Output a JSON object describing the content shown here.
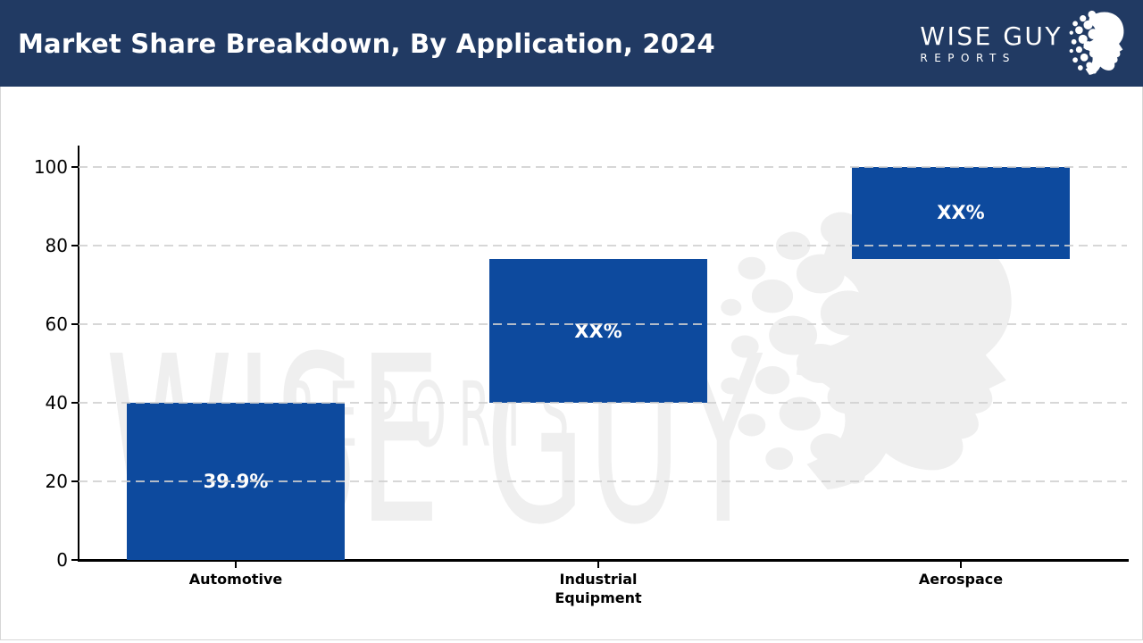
{
  "header": {
    "title": "Market Share Breakdown, By Application, 2024",
    "logo_primary": "WISE GUY",
    "logo_secondary": "REPORTS"
  },
  "watermark": {
    "primary": "WISE GUY",
    "secondary": "REPORTS"
  },
  "colors": {
    "header_bg": "#213a63",
    "bar": "#0d4a9e",
    "bar_label": "#ffffff",
    "axis": "#000000",
    "grid": "#d9d9d9",
    "tick_label": "#000000",
    "watermark": "#efefef"
  },
  "chart_data": {
    "type": "bar",
    "subtype": "waterfall",
    "title": "Market Share Breakdown, By Application, 2024",
    "categories": [
      "Automotive",
      "Industrial Equipment",
      "Aerospace"
    ],
    "segments": [
      {
        "category": "Automotive",
        "start": 0,
        "end": 39.9,
        "value": 39.9,
        "label": "39.9%"
      },
      {
        "category": "Industrial Equipment",
        "start": 39.9,
        "end": 76.6,
        "value": 36.7,
        "label": "XX%"
      },
      {
        "category": "Aerospace",
        "start": 76.6,
        "end": 100,
        "value": 23.4,
        "label": "XX%"
      }
    ],
    "xlabel": "",
    "ylabel": "",
    "yticks": [
      0,
      20,
      40,
      60,
      80,
      100
    ],
    "ylim": [
      0,
      105
    ],
    "grid": "horizontal-dashed",
    "legend": "none"
  }
}
